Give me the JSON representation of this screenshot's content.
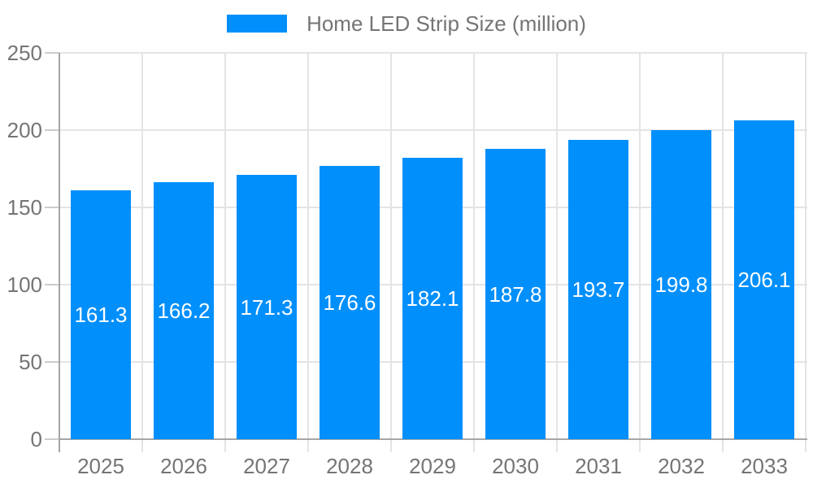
{
  "legend": {
    "label": "Home LED Strip Size (million)"
  },
  "chart_data": {
    "type": "bar",
    "title": "Home LED Strip Size (million)",
    "categories": [
      "2025",
      "2026",
      "2027",
      "2028",
      "2029",
      "2030",
      "2031",
      "2032",
      "2033"
    ],
    "values": [
      161.3,
      166.2,
      171.3,
      176.6,
      182.1,
      187.8,
      193.7,
      199.8,
      206.1
    ],
    "xlabel": "",
    "ylabel": "",
    "ylim": [
      0,
      250
    ],
    "yticks": [
      0,
      50,
      100,
      150,
      200,
      250
    ],
    "grid": true,
    "legend_position": "top",
    "colors": {
      "bar": "#008FFB",
      "data_label": "#ffffff",
      "axis_label": "#757575",
      "legend_text": "#757575",
      "gridline": "#e4e4e4",
      "tick": "#cccccc",
      "axis_line": "#a6a6a6",
      "background": "#ffffff"
    }
  }
}
